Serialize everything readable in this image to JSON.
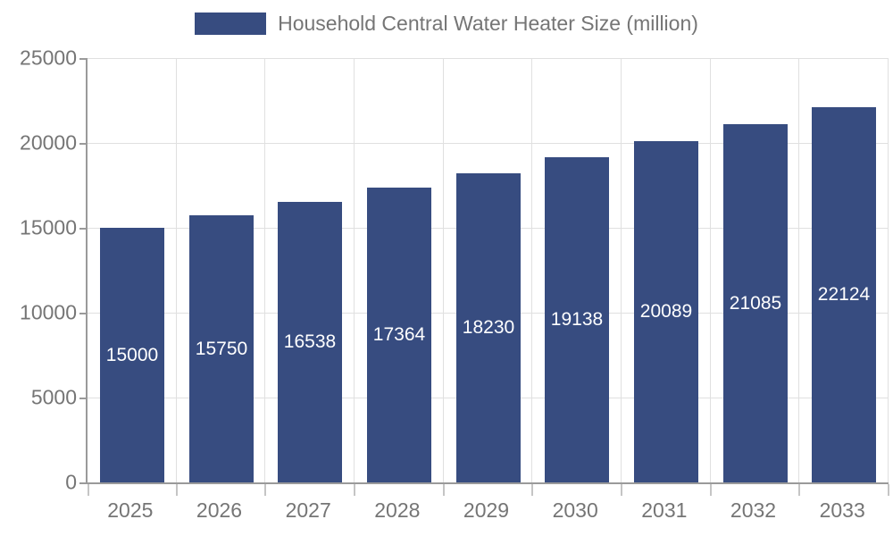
{
  "chart_data": {
    "type": "bar",
    "title": "Household Central Water Heater Size (million)",
    "categories": [
      "2025",
      "2026",
      "2027",
      "2028",
      "2029",
      "2030",
      "2031",
      "2032",
      "2033"
    ],
    "values": [
      15000,
      15750,
      16538,
      17364,
      18230,
      19138,
      20089,
      21085,
      22124
    ],
    "xlabel": "",
    "ylabel": "",
    "ylim": [
      0,
      25000
    ],
    "yticks": [
      0,
      5000,
      10000,
      15000,
      20000,
      25000
    ],
    "grid": true,
    "legend_position": "top-center",
    "bar_color": "#374c80",
    "bar_label_color": "#ffffff",
    "axis_text_color": "#757575",
    "axis_line_color": "#9a9a9a",
    "gridline_color": "#e0e0e0"
  }
}
